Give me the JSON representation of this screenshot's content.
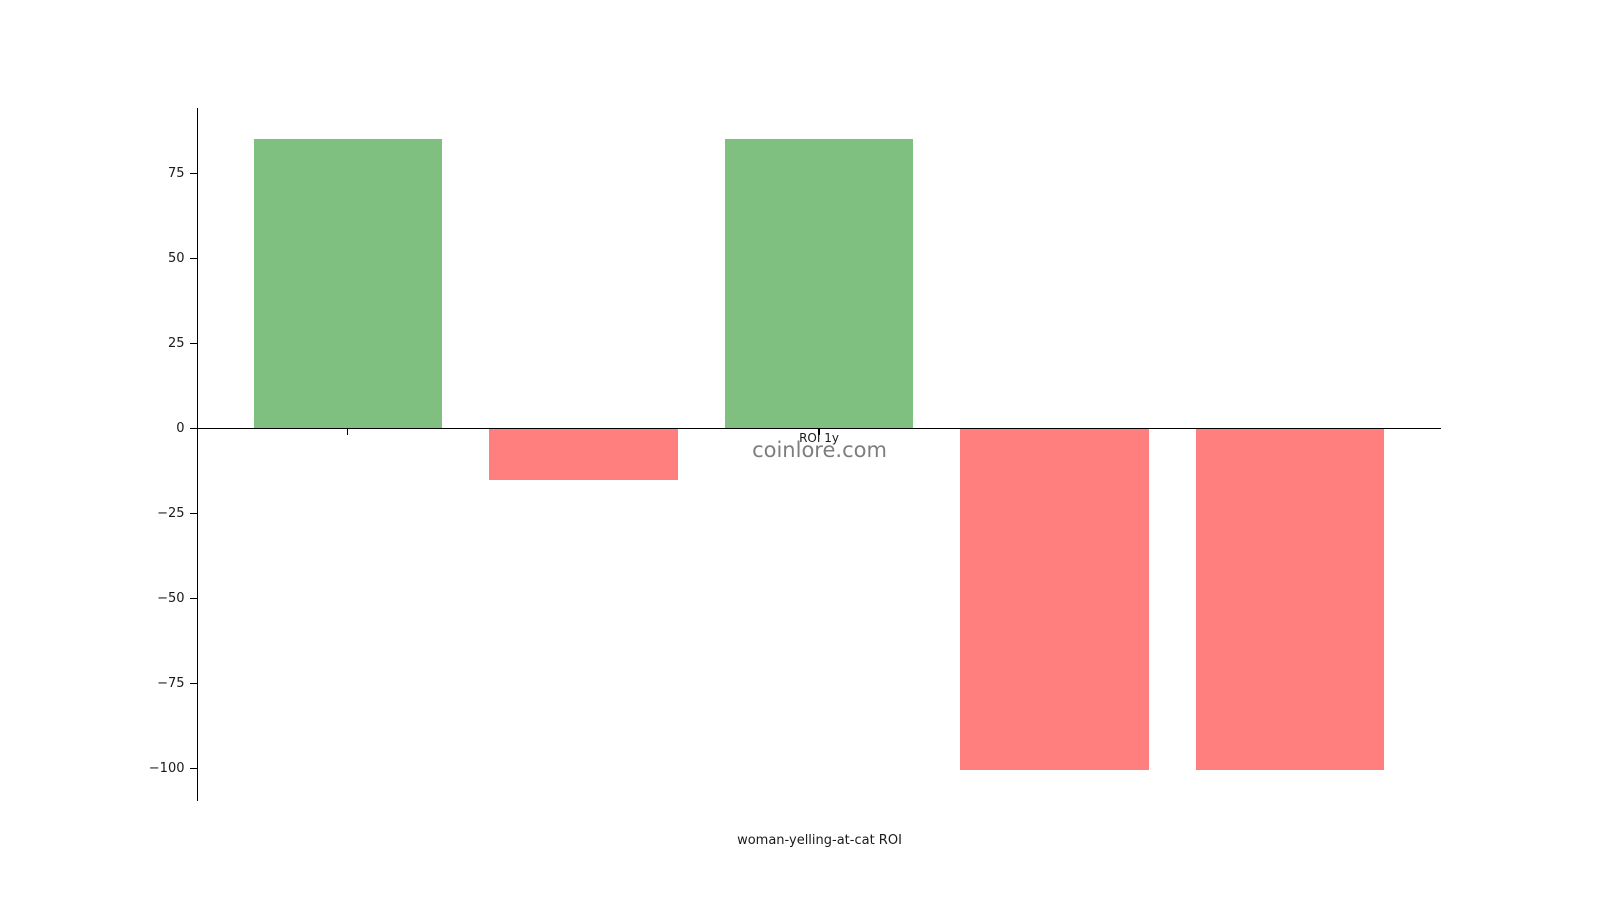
{
  "page": {
    "background": "#ffffff"
  },
  "chart_data": {
    "type": "bar",
    "title": "woman-yelling-at-cat ROI",
    "watermark": "coinlore.com",
    "categories": [
      "",
      "",
      "ROI 1y",
      "",
      ""
    ],
    "values": [
      85,
      -15,
      85,
      -100,
      -100
    ],
    "bar_colors": [
      "#7fbf7f",
      "#ff7f7f",
      "#7fbf7f",
      "#ff7f7f",
      "#ff7f7f"
    ],
    "positive_color": "#7fbf7f",
    "negative_color": "#ff7f7f",
    "axis_color": "#000000",
    "text_color": "#1a1a1a",
    "watermark_color": "#7e7e7e",
    "xlabel": "",
    "ylabel": "",
    "ylim": [
      -109.25,
      94.25
    ],
    "yticks": [
      {
        "value": 75,
        "label": "75"
      },
      {
        "value": 50,
        "label": "50"
      },
      {
        "value": 25,
        "label": "25"
      },
      {
        "value": 0,
        "label": "0"
      },
      {
        "value": -25,
        "label": "−25"
      },
      {
        "value": -50,
        "label": "−50"
      },
      {
        "value": -75,
        "label": "−75"
      },
      {
        "value": -100,
        "label": "−100"
      }
    ],
    "visible_xtick_indices": [
      0,
      2
    ],
    "grid": false,
    "legend": "none"
  }
}
